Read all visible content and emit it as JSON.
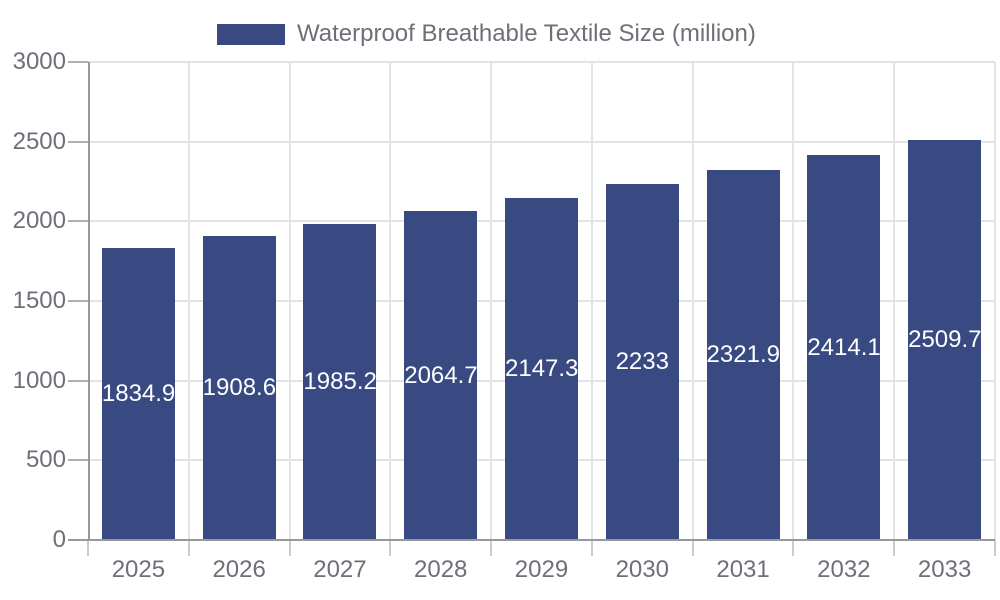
{
  "legend": {
    "label": "Waterproof Breathable Textile Size (million)"
  },
  "chart_data": {
    "type": "bar",
    "title": "",
    "xlabel": "",
    "ylabel": "",
    "categories": [
      "2025",
      "2026",
      "2027",
      "2028",
      "2029",
      "2030",
      "2031",
      "2032",
      "2033"
    ],
    "values": [
      1834.9,
      1908.6,
      1985.2,
      2064.7,
      2147.3,
      2233,
      2321.9,
      2414.1,
      2509.7
    ],
    "series_name": "Waterproof Breathable Textile Size (million)",
    "ylim": [
      0,
      3000
    ],
    "y_ticks": [
      0,
      500,
      1000,
      1500,
      2000,
      2500,
      3000
    ],
    "grid": true,
    "legend_position": "top",
    "value_labels_position": "inside-middle",
    "bar_color": "#394A83",
    "value_label_color": "#ffffff",
    "axis_text_color": "#6E7079"
  }
}
